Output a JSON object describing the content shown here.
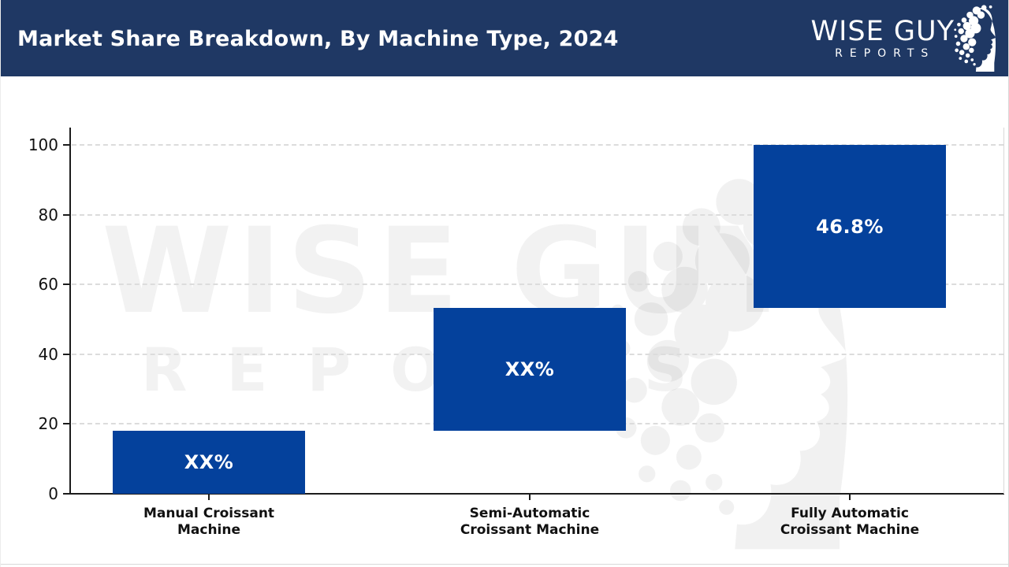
{
  "header": {
    "title": "Market Share Breakdown, By Machine Type, 2024",
    "bg_color": "#1f3864",
    "logo": {
      "line1": "WISE GUY",
      "line2": "REPORTS"
    }
  },
  "watermark": {
    "line1": "WISE GUY",
    "line2": "REPORTS"
  },
  "chart_data": {
    "type": "bar",
    "subtype": "floating-segment-waterfall",
    "title": "Market Share Breakdown, By Machine Type, 2024",
    "categories": [
      [
        "Manual Croissant",
        "Machine"
      ],
      [
        "Semi-Automatic",
        "Croissant Machine"
      ],
      [
        "Fully Automatic",
        "Croissant Machine"
      ]
    ],
    "segments": [
      {
        "from": 0,
        "to": 18,
        "value_label": "XX%"
      },
      {
        "from": 18,
        "to": 53.2,
        "value_label": "XX%"
      },
      {
        "from": 53.2,
        "to": 100,
        "value_label": "46.8%"
      }
    ],
    "yticks": [
      0,
      20,
      40,
      60,
      80,
      100
    ],
    "ylim": [
      0,
      105
    ],
    "grid": "horizontal-dashed",
    "legend": "none",
    "bar_color": "#04419c",
    "value_label_color": "#ffffff"
  }
}
